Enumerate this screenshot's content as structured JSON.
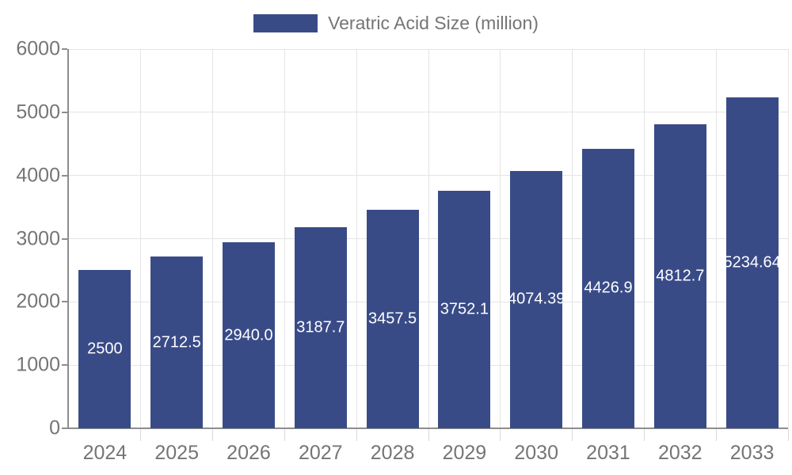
{
  "legend": {
    "label": "Veratric Acid Size (million)"
  },
  "chart_data": {
    "type": "bar",
    "title": "Veratric Acid Size (million)",
    "categories": [
      "2024",
      "2025",
      "2026",
      "2027",
      "2028",
      "2029",
      "2030",
      "2031",
      "2032",
      "2033"
    ],
    "values": [
      2500,
      2712.5,
      2940.0,
      3187.7,
      3457.5,
      3752.1,
      4074.39,
      4426.9,
      4812.7,
      5234.64
    ],
    "labels": [
      "2500",
      "2712.5",
      "2940.0",
      "3187.7",
      "3457.5",
      "3752.1",
      "4074.39",
      "4426.9",
      "4812.7",
      "5234.64"
    ],
    "xlabel": "",
    "ylabel": "",
    "ylim": [
      0,
      6000
    ],
    "yticks": [
      0,
      1000,
      2000,
      3000,
      4000,
      5000,
      6000
    ],
    "grid": true,
    "legend_position": "top",
    "bar_color": "#394B87",
    "bar_label_color": "#ffffff",
    "text_color": "#757575",
    "grid_color": "#e4e4e4",
    "axis_color": "#8d8d8d",
    "minor_tick_color": "#d9d9d9"
  }
}
